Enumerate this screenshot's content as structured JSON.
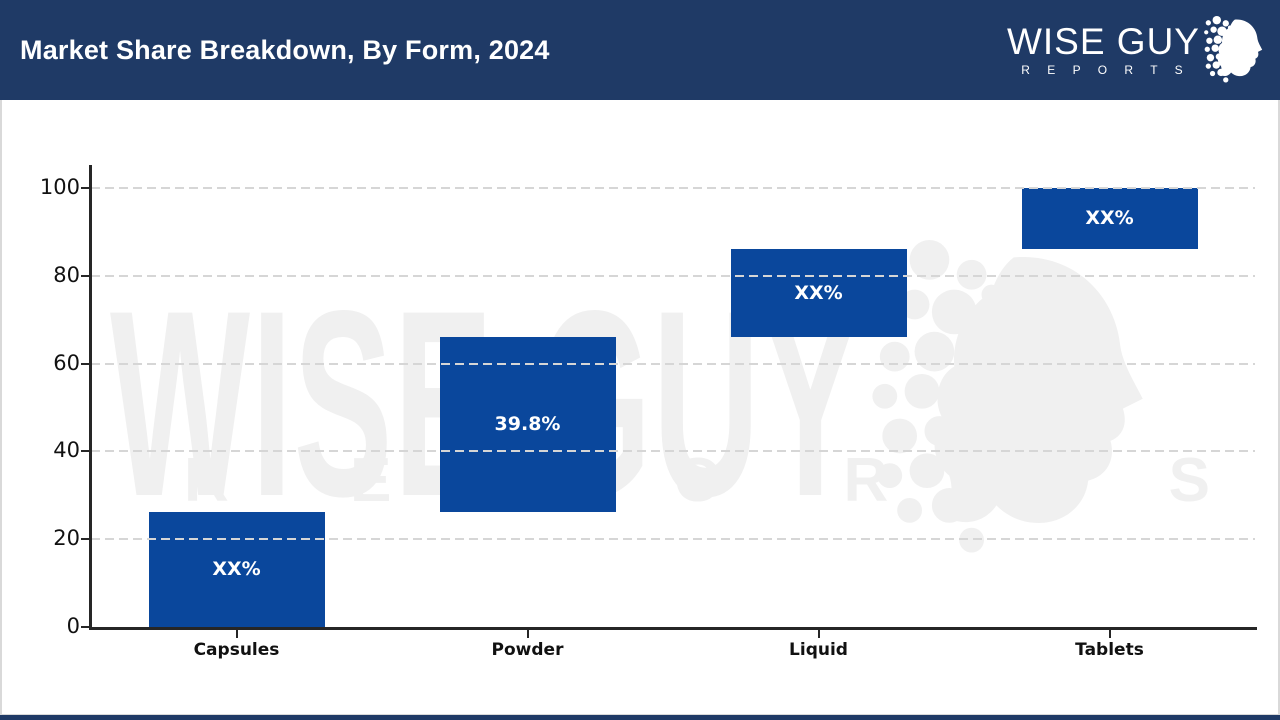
{
  "header": {
    "title": "Market Share Breakdown, By Form, 2024",
    "logo": {
      "brand": "WISE GUY",
      "sub": "R E P O R T S",
      "face_icon": "dotted-head-profile-icon"
    }
  },
  "watermark": {
    "brand": "WISE GUY",
    "sub": "R E P O R T S",
    "face_icon": "dotted-head-profile-icon"
  },
  "colors": {
    "header_bg": "#1f3a66",
    "footer_bg": "#1f3a66",
    "bar": "#0a479c",
    "bar_label": "#ffffff",
    "grid": "#d6d6d6",
    "axis": "#262626",
    "tick_text": "#111111",
    "watermark": "#f0f0f0",
    "page_bg": "#ffffff",
    "edge_border": "#d9d9d9"
  },
  "chart_data": {
    "type": "bar",
    "subtype": "floating-waterfall",
    "title": "Market Share Breakdown, By Form, 2024",
    "xlabel": "",
    "ylabel": "",
    "categories": [
      "Capsules",
      "Powder",
      "Liquid",
      "Tablets"
    ],
    "series": [
      {
        "name": "Market share (%)",
        "segments": [
          {
            "category": "Capsules",
            "start": 0,
            "end": 26.3,
            "value_est": 26.3,
            "label": "XX%"
          },
          {
            "category": "Powder",
            "start": 26.3,
            "end": 66.1,
            "value_est": 39.8,
            "label": "39.8%"
          },
          {
            "category": "Liquid",
            "start": 66.1,
            "end": 86.2,
            "value_est": 20.1,
            "label": "XX%"
          },
          {
            "category": "Tablets",
            "start": 86.2,
            "end": 100,
            "value_est": 13.8,
            "label": "XX%"
          }
        ]
      }
    ],
    "yticks": [
      0,
      20,
      40,
      60,
      80,
      100
    ],
    "ylim": [
      0,
      105
    ],
    "grid": "horizontal-dashed",
    "legend": null
  }
}
